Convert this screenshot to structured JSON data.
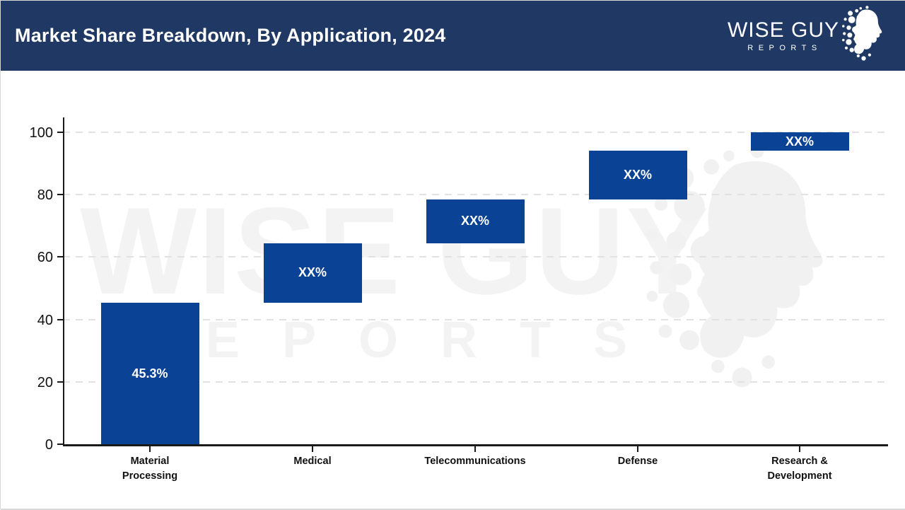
{
  "header": {
    "title": "Market Share Breakdown, By Application, 2024",
    "brand": {
      "line1": "WISE GUY",
      "line2": "REPORTS"
    }
  },
  "watermark": {
    "line1": "WISE GUY",
    "line2": "REPORTS"
  },
  "colors": {
    "header_bg": "#1f3864",
    "bar": "#0a4296",
    "bar_label": "#ffffff",
    "grid": "#e2e2e2",
    "axis": "#1a1a1a",
    "watermark": "#f3f3f3"
  },
  "chart_data": {
    "type": "bar",
    "subtype": "waterfall",
    "title": "Market Share Breakdown, By Application, 2024",
    "xlabel": "",
    "ylabel": "",
    "ylim": [
      0,
      105
    ],
    "y_ticks": [
      0,
      20,
      40,
      60,
      80,
      100
    ],
    "grid": "dashed-horizontal",
    "categories": [
      "Material Processing",
      "Medical",
      "Telecommunications",
      "Defense",
      "Research & Development"
    ],
    "category_label_lines": [
      [
        "Material",
        "Processing"
      ],
      [
        "Medical"
      ],
      [
        "Telecommunications"
      ],
      [
        "Defense"
      ],
      [
        "Research &",
        "Development"
      ]
    ],
    "bars": [
      {
        "category": "Material Processing",
        "start": 0,
        "end": 45.3,
        "value_label": "45.3%"
      },
      {
        "category": "Medical",
        "start": 45.3,
        "end": 64.5,
        "value_label": "XX%"
      },
      {
        "category": "Telecommunications",
        "start": 64.5,
        "end": 78.4,
        "value_label": "XX%"
      },
      {
        "category": "Defense",
        "start": 78.4,
        "end": 94.1,
        "value_label": "XX%"
      },
      {
        "category": "Research & Development",
        "start": 94.1,
        "end": 100,
        "value_label": "XX%"
      }
    ]
  }
}
